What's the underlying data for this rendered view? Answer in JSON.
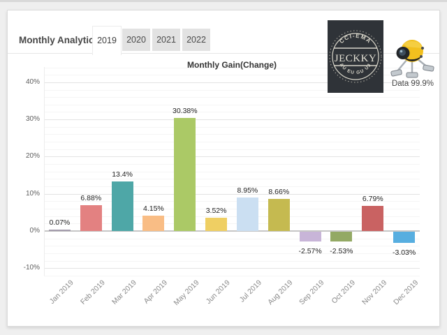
{
  "header": {
    "title": "Monthly Analytics",
    "tabs": [
      {
        "label": "2019",
        "active": true
      },
      {
        "label": "2020",
        "active": false
      },
      {
        "label": "2021",
        "active": false
      },
      {
        "label": "2022",
        "active": false
      }
    ]
  },
  "branding": {
    "badge_top_arc": "CCI-EMA",
    "badge_name": "JECKKY",
    "badge_bottom_arc": "AU EU GU UJ",
    "badge_bg": "#2f3338",
    "badge_fg": "#d9d6ca",
    "robot_icon": "trading-robot-mascot",
    "data_quality": "Data 99.9%"
  },
  "chart_data": {
    "type": "bar",
    "title": "Monthly Gain(Change)",
    "categories": [
      "Jan 2019",
      "Feb 2019",
      "Mar 2019",
      "Apr 2019",
      "May 2019",
      "Jun 2019",
      "Jul 2019",
      "Aug 2019",
      "Sep 2019",
      "Oct 2019",
      "Nov 2019",
      "Dec 2019"
    ],
    "values": [
      0.07,
      6.88,
      13.4,
      4.15,
      30.38,
      3.52,
      8.95,
      8.66,
      -2.57,
      -2.53,
      6.79,
      -3.03
    ],
    "value_labels": [
      "0.07%",
      "6.88%",
      "13.4%",
      "4.15%",
      "30.38%",
      "3.52%",
      "8.95%",
      "8.66%",
      "-2.57%",
      "-2.53%",
      "6.79%",
      "-3.03%"
    ],
    "bar_colors": [
      "#a39bab",
      "#e38181",
      "#4ea7a7",
      "#f9bd85",
      "#abc966",
      "#efcf63",
      "#cbdff2",
      "#c5ba50",
      "#c8b5d8",
      "#93a964",
      "#c96262",
      "#57aee0"
    ],
    "xlabel": "",
    "ylabel": "",
    "y_ticks": [
      {
        "value": 40,
        "label": "40%"
      },
      {
        "value": 30,
        "label": "30%"
      },
      {
        "value": 20,
        "label": "20%"
      },
      {
        "value": 10,
        "label": "10%"
      },
      {
        "value": 0,
        "label": "0%"
      },
      {
        "value": -10,
        "label": "-10%"
      }
    ],
    "ylim": [
      -12,
      44
    ],
    "grid": true,
    "legend": false
  }
}
